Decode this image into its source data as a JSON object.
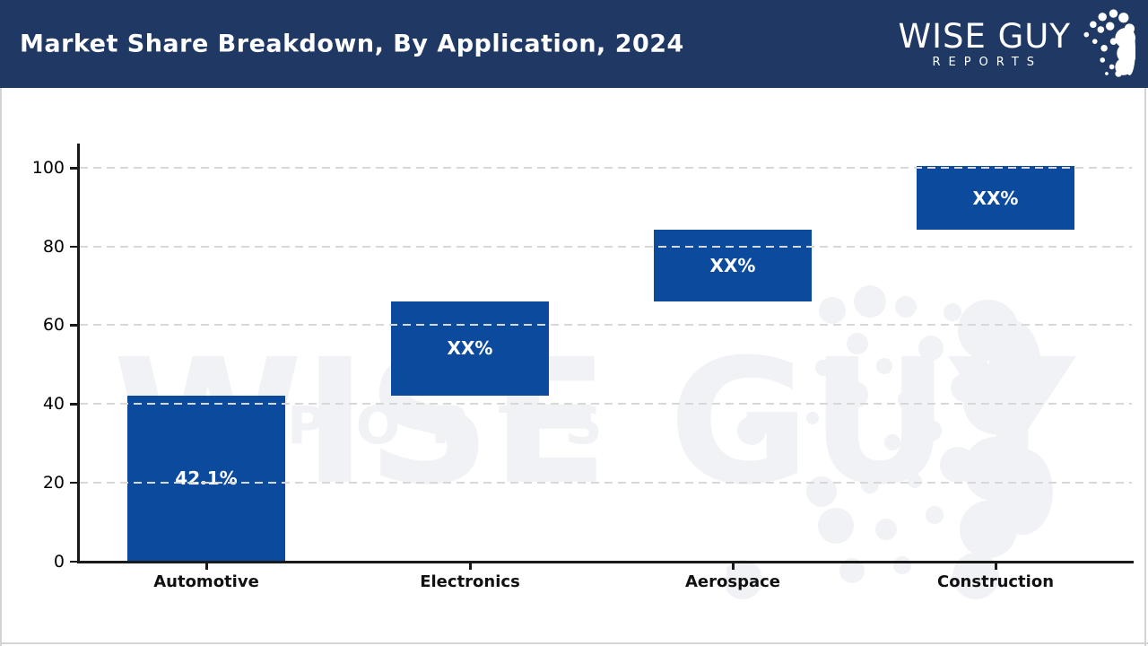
{
  "header": {
    "title": "Market Share Breakdown, By Application, 2024",
    "bg_color": "#1f3864",
    "logo": {
      "line1": "WISE GUY",
      "line2": "REPORTS"
    }
  },
  "watermark": {
    "line1": "WISE GUY",
    "line2": "REPORTS"
  },
  "chart_data": {
    "type": "bar",
    "subtype": "waterfall",
    "title": "Market Share Breakdown, By Application, 2024",
    "categories": [
      "Automotive",
      "Electronics",
      "Aerospace",
      "Construction"
    ],
    "segments": [
      {
        "category": "Automotive",
        "start": 0,
        "end": 42.1,
        "label": "42.1%"
      },
      {
        "category": "Electronics",
        "start": 42.1,
        "end": 66.0,
        "label": "XX%"
      },
      {
        "category": "Aerospace",
        "start": 66.0,
        "end": 84.3,
        "label": "XX%"
      },
      {
        "category": "Construction",
        "start": 84.3,
        "end": 100.4,
        "label": "XX%"
      }
    ],
    "y_ticks": [
      0,
      20,
      40,
      60,
      80,
      100
    ],
    "ylim": [
      0,
      106
    ],
    "xlabel": "",
    "ylabel": "",
    "grid": "horizontal-dashed",
    "legend": "none",
    "bar_color": "#0c4a9e",
    "value_label_color": "#ffffff",
    "axis_color": "#1a1a1a"
  }
}
